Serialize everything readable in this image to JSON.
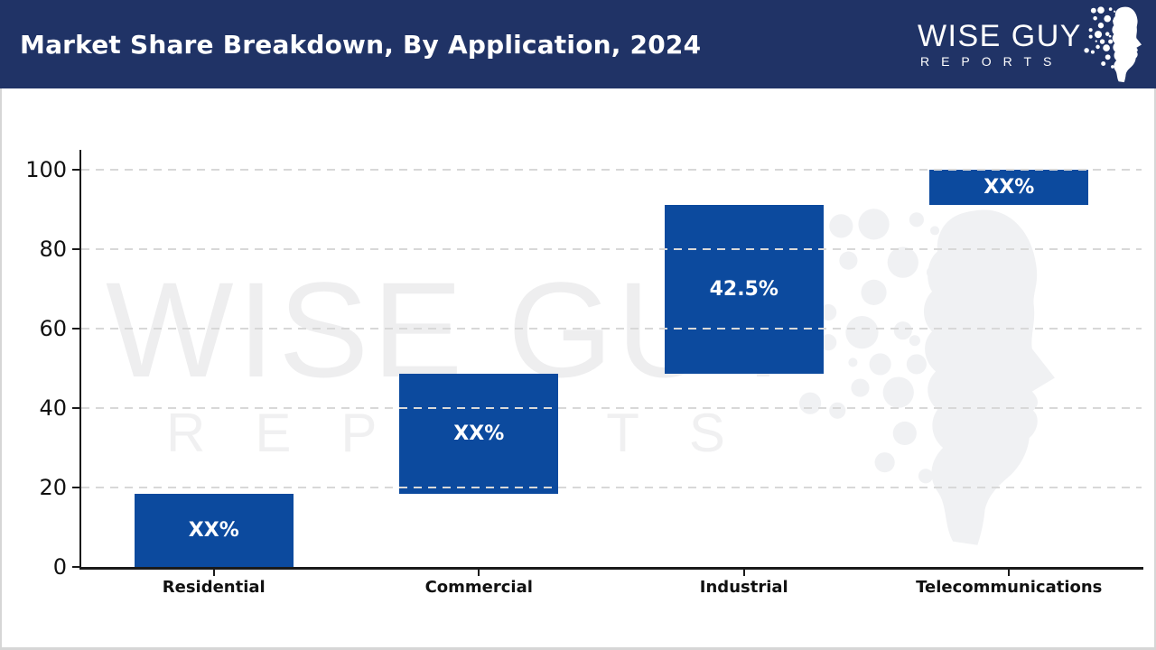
{
  "header": {
    "title": "Market Share Breakdown, By Application, 2024",
    "brand": {
      "line1": "WISE GUY",
      "line2": "REPORTS"
    },
    "bg_color": "#203366"
  },
  "watermark": {
    "line1": "WISE GUY",
    "line2": "REPORTS"
  },
  "chart_data": {
    "type": "bar",
    "subtype": "waterfall-segments",
    "title": "Market Share Breakdown, By Application, 2024",
    "categories": [
      "Residential",
      "Commercial",
      "Industrial",
      "Telecommunications"
    ],
    "segments": [
      {
        "category": "Residential",
        "start": 0,
        "end": 18.5,
        "value": 18.5,
        "label": "XX%"
      },
      {
        "category": "Commercial",
        "start": 18.5,
        "end": 48.75,
        "value": 30.25,
        "label": "XX%"
      },
      {
        "category": "Industrial",
        "start": 48.75,
        "end": 91.25,
        "value": 42.5,
        "label": "42.5%"
      },
      {
        "category": "Telecommunications",
        "start": 91.25,
        "end": 100,
        "value": 8.75,
        "label": "XX%"
      }
    ],
    "y_ticks": [
      0,
      20,
      40,
      60,
      80,
      100
    ],
    "ylim": [
      0,
      105
    ],
    "xlabel": "",
    "ylabel": "",
    "grid": "horizontal-dashed",
    "legend": "none",
    "colors": {
      "bar": "#0c4a9e",
      "bar_label": "#ffffff",
      "axis": "#1a1a1a",
      "grid": "#d8d8d8",
      "header_bg": "#203366",
      "watermark": "#f0f1f3"
    }
  }
}
